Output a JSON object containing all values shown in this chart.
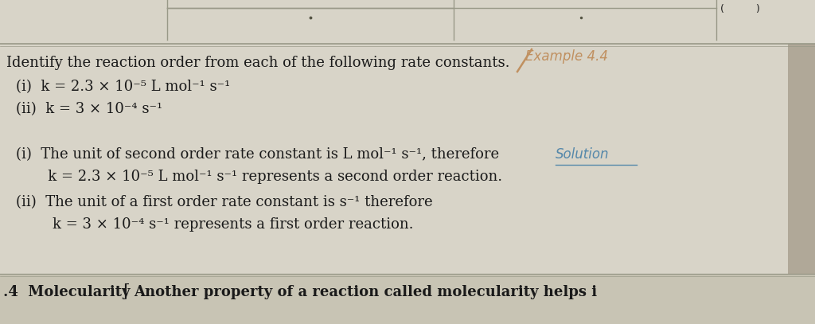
{
  "bg_color": "#ddd8cc",
  "main_bg": "#d0cbbf",
  "top_area_color": "#ccc7bb",
  "bottom_area_color": "#c8c2b2",
  "right_bar_color": "#b0a898",
  "text_color": "#1a1a1a",
  "line_color": "#999988",
  "title_line": "Identify the reaction order from each of the following rate constants.",
  "example_label": "Example 4.4",
  "item_i_q": "(i)  k = 2.3 × 10⁻⁵ L mol⁻¹ s⁻¹",
  "item_ii_q": "(ii)  k = 3 × 10⁻⁴ s⁻¹",
  "sol_i_1": "(i)  The unit of second order rate constant is L mol⁻¹ s⁻¹, therefore",
  "sol_i_2": "       k = 2.3 × 10⁻⁵ L mol⁻¹ s⁻¹ represents a second order reaction.",
  "sol_ii_1": "(ii)  The unit of a first order rate constant is s⁻¹ therefore",
  "sol_ii_2": "        k = 3 × 10⁻⁴ s⁻¹ represents a first order reaction.",
  "solution_label": "Solution",
  "solution_color": "#5588aa",
  "example_color": "#c09060",
  "bottom_text_1": ".4  Molecularity",
  "bottom_text_2": "Another property of a reaction called molecularity helps i",
  "font_size_main": 13,
  "font_size_bottom": 13
}
